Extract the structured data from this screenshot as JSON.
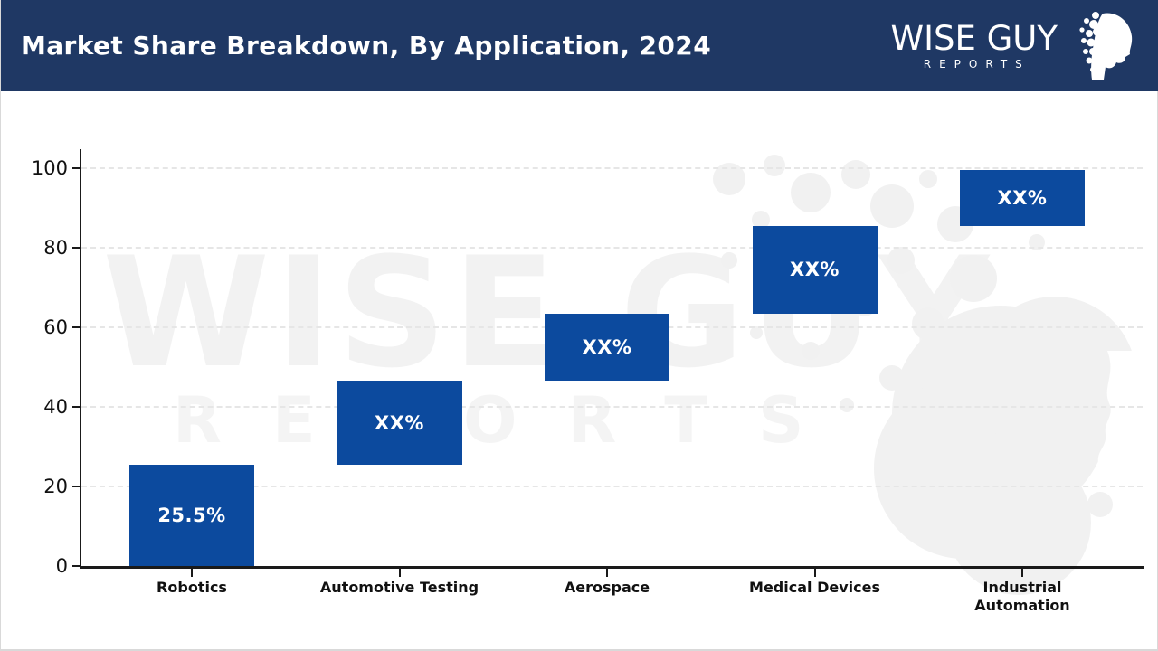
{
  "header": {
    "title": "Market Share Breakdown, By Application, 2024",
    "logo": {
      "main": "WISE GUY",
      "sub": "REPORTS"
    }
  },
  "watermark": {
    "main": "WISE GUY",
    "sub": "REPORTS"
  },
  "chart_data": {
    "type": "bar",
    "variant": "floating-segment-waterfall",
    "title": "Market Share Breakdown, By Application, 2024",
    "categories": [
      "Robotics",
      "Automotive Testing",
      "Aerospace",
      "Medical Devices",
      "Industrial Automation"
    ],
    "category_lines": [
      [
        "Robotics"
      ],
      [
        "Automotive Testing"
      ],
      [
        "Aerospace"
      ],
      [
        "Medical Devices"
      ],
      [
        "Industrial",
        "Automation"
      ]
    ],
    "segments": [
      {
        "category": "Robotics",
        "start": 0,
        "end": 25.5,
        "label": "25.5%"
      },
      {
        "category": "Automotive Testing",
        "start": 25.5,
        "end": 46.5,
        "label": "XX%"
      },
      {
        "category": "Aerospace",
        "start": 46.5,
        "end": 63.5,
        "label": "XX%"
      },
      {
        "category": "Medical Devices",
        "start": 63.5,
        "end": 85.5,
        "label": "XX%"
      },
      {
        "category": "Industrial Automation",
        "start": 85.5,
        "end": 99.5,
        "label": "XX%"
      }
    ],
    "xlabel": "",
    "ylabel": "",
    "ylim": [
      0,
      100
    ],
    "yticks": [
      0,
      20,
      40,
      60,
      80,
      100
    ],
    "grid": {
      "axis": "y",
      "style": "dashed"
    },
    "legend": null,
    "colors": {
      "bar": "#0c4a9e",
      "header": "#1f3864",
      "grid": "#e6e6e6",
      "axis": "#1a1a1a",
      "bar_label": "#ffffff",
      "tick_label": "#111111"
    }
  }
}
